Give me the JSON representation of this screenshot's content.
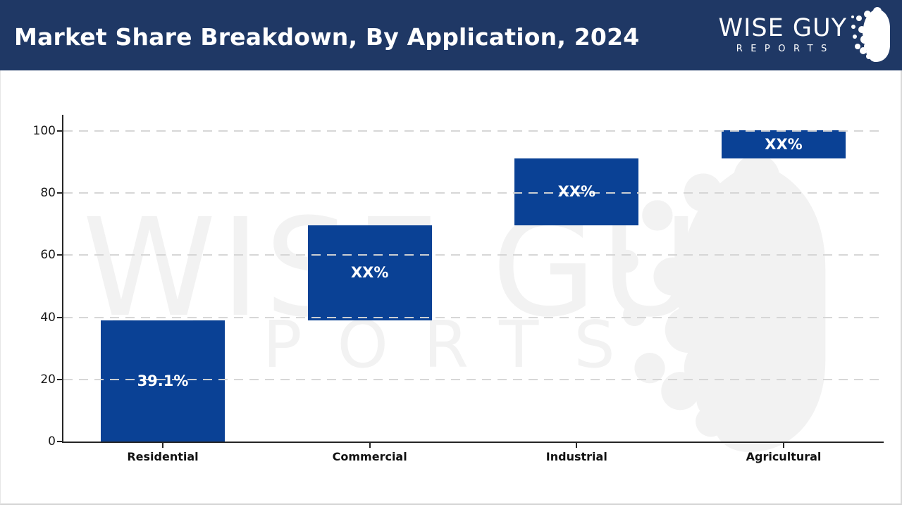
{
  "header": {
    "title": "Market Share Breakdown, By Application, 2024",
    "logo": {
      "primary": "WISE GUY",
      "secondary": "REPORTS"
    }
  },
  "watermark": {
    "primary": "WISE GUY",
    "secondary": "REPORTS"
  },
  "chart_data": {
    "type": "bar",
    "subtype": "waterfall",
    "title": "Market Share Breakdown, By Application, 2024",
    "categories": [
      "Residential",
      "Commercial",
      "Industrial",
      "Agricultural"
    ],
    "segments": [
      {
        "category": "Residential",
        "start": 0,
        "end": 39.1,
        "label": "39.1%"
      },
      {
        "category": "Commercial",
        "start": 39.1,
        "end": 69.6,
        "label": "XX%"
      },
      {
        "category": "Industrial",
        "start": 69.6,
        "end": 91.2,
        "label": "XX%"
      },
      {
        "category": "Agricultural",
        "start": 91.2,
        "end": 100.2,
        "label": "XX%"
      }
    ],
    "xlabel": "",
    "ylabel": "",
    "ylim": [
      0,
      105
    ],
    "yticks": [
      0,
      20,
      40,
      60,
      80,
      100
    ],
    "grid": "horizontal-dashed",
    "legend": "none",
    "bar_color": "#0a4195",
    "value_label_color": "#ffffff"
  },
  "colors": {
    "header_bg": "#1f3865",
    "bar": "#0a4195",
    "grid": "#d5d5d5",
    "axis": "#262626",
    "tick_label": "#1a1a1a",
    "watermark": "#f2f2f2",
    "border": "#d9d9d9"
  }
}
